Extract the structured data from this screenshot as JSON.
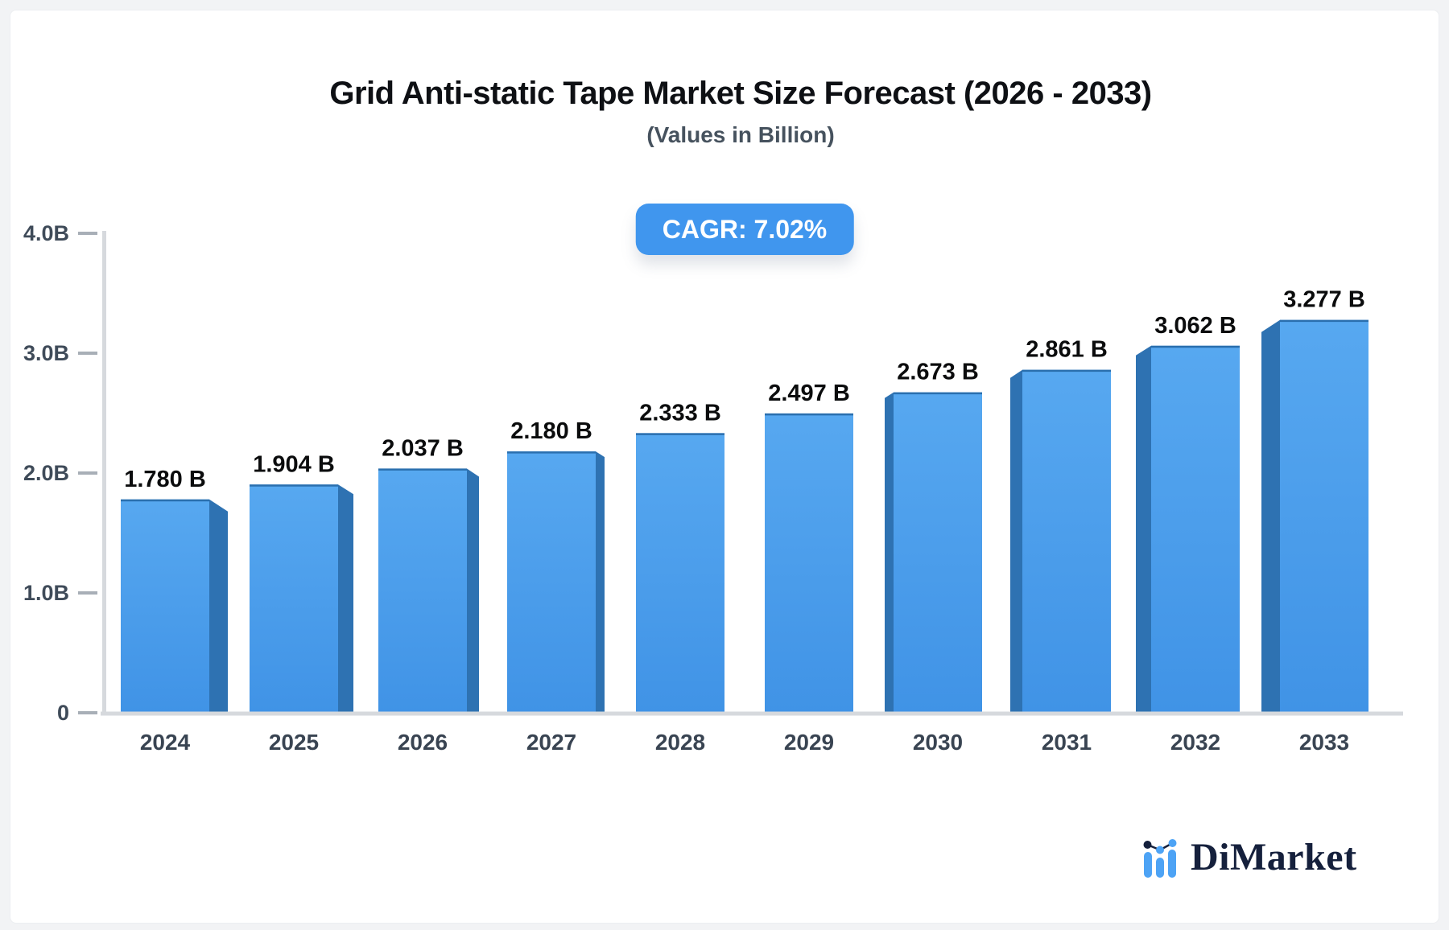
{
  "page": {
    "background": "#f2f3f5",
    "card_background": "#ffffff"
  },
  "header": {
    "title": "Grid Anti-static Tape Market Size Forecast (2026 - 2033)",
    "subtitle": "(Values in Billion)"
  },
  "badge": {
    "label": "CAGR: 7.02%",
    "background": "#4096ee",
    "text_color": "#ffffff"
  },
  "chart_data": {
    "type": "bar",
    "title": "Grid Anti-static Tape Market Size Forecast (2026 - 2033)",
    "subtitle": "(Values in Billion)",
    "unit": "Billion",
    "cagr": "7.02%",
    "categories": [
      "2024",
      "2025",
      "2026",
      "2027",
      "2028",
      "2029",
      "2030",
      "2031",
      "2032",
      "2033"
    ],
    "values": [
      1.78,
      1.904,
      2.037,
      2.18,
      2.333,
      2.497,
      2.673,
      2.861,
      3.062,
      3.277
    ],
    "value_labels": [
      "1.780 B",
      "1.904 B",
      "2.037 B",
      "2.180 B",
      "2.333 B",
      "2.497 B",
      "2.673 B",
      "2.861 B",
      "3.062 B",
      "3.277 B"
    ],
    "xlabel": "",
    "ylabel": "",
    "ylim": [
      0,
      4.0
    ],
    "yticks": [
      {
        "value": 0,
        "label": "0"
      },
      {
        "value": 1,
        "label": "1.0B"
      },
      {
        "value": 2,
        "label": "2.0B"
      },
      {
        "value": 3,
        "label": "3.0B"
      },
      {
        "value": 4,
        "label": "4.0B"
      }
    ],
    "grid": false,
    "legend": null,
    "style_3d": true,
    "bar_face_color_top": "#57a8f0",
    "bar_face_color_bottom": "#4093e6",
    "bar_side_color": "#2e72b2",
    "bar_top_edge_color": "#2a6fae",
    "axis_color": "#d6d9dd",
    "tick_color": "#a8afb7",
    "tick_label_color": "#3f4b59",
    "category_label_color": "#394452",
    "value_label_color": "#0b0c0d"
  },
  "footer": {
    "brand": "DiMarket",
    "brand_color": "#15203c",
    "icon": "bar-chart-logo-icon",
    "icon_color": "#4da3f5"
  }
}
